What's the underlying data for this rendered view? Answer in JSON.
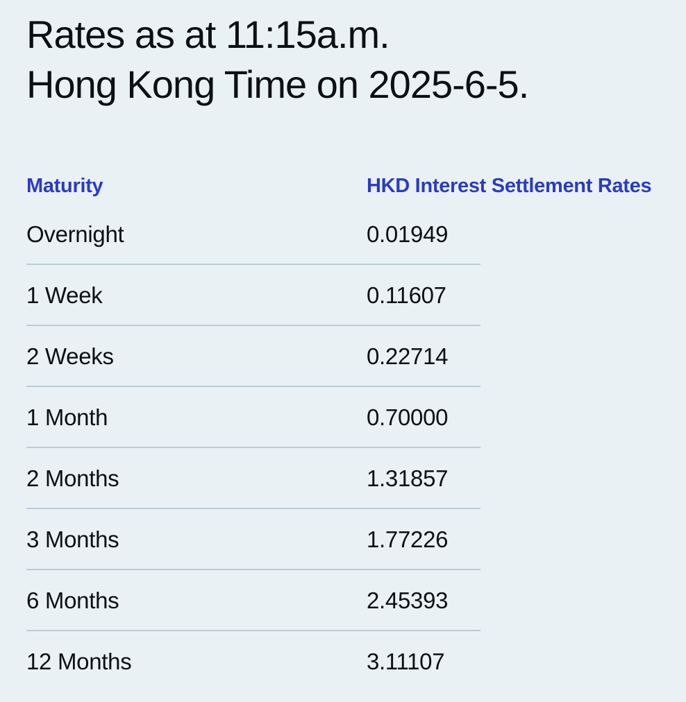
{
  "page": {
    "title_line1": "Rates as at 11:15a.m.",
    "title_line2": "Hong Kong Time on 2025-6-5.",
    "background_color": "#eaf1f4",
    "accent_color": "#2a3bc6",
    "divider_color": "#b9cbde",
    "text_color": "#0d1013"
  },
  "table": {
    "columns": {
      "maturity": "Maturity",
      "rate": "HKD Interest Settlement Rates"
    },
    "rows": [
      {
        "maturity": "Overnight",
        "rate": "0.01949"
      },
      {
        "maturity": "1 Week",
        "rate": "0.11607"
      },
      {
        "maturity": "2 Weeks",
        "rate": "0.22714"
      },
      {
        "maturity": "1 Month",
        "rate": "0.70000"
      },
      {
        "maturity": "2 Months",
        "rate": "1.31857"
      },
      {
        "maturity": "3 Months",
        "rate": "1.77226"
      },
      {
        "maturity": "6 Months",
        "rate": "2.45393"
      },
      {
        "maturity": "12 Months",
        "rate": "3.11107"
      }
    ]
  },
  "chart_data": {
    "type": "table",
    "title": "HKD Interest Settlement Rates as at 11:15a.m. Hong Kong Time on 2025-6-5",
    "categories": [
      "Overnight",
      "1 Week",
      "2 Weeks",
      "1 Month",
      "2 Months",
      "3 Months",
      "6 Months",
      "12 Months"
    ],
    "values": [
      0.01949,
      0.11607,
      0.22714,
      0.7,
      1.31857,
      1.77226,
      2.45393,
      3.11107
    ]
  }
}
